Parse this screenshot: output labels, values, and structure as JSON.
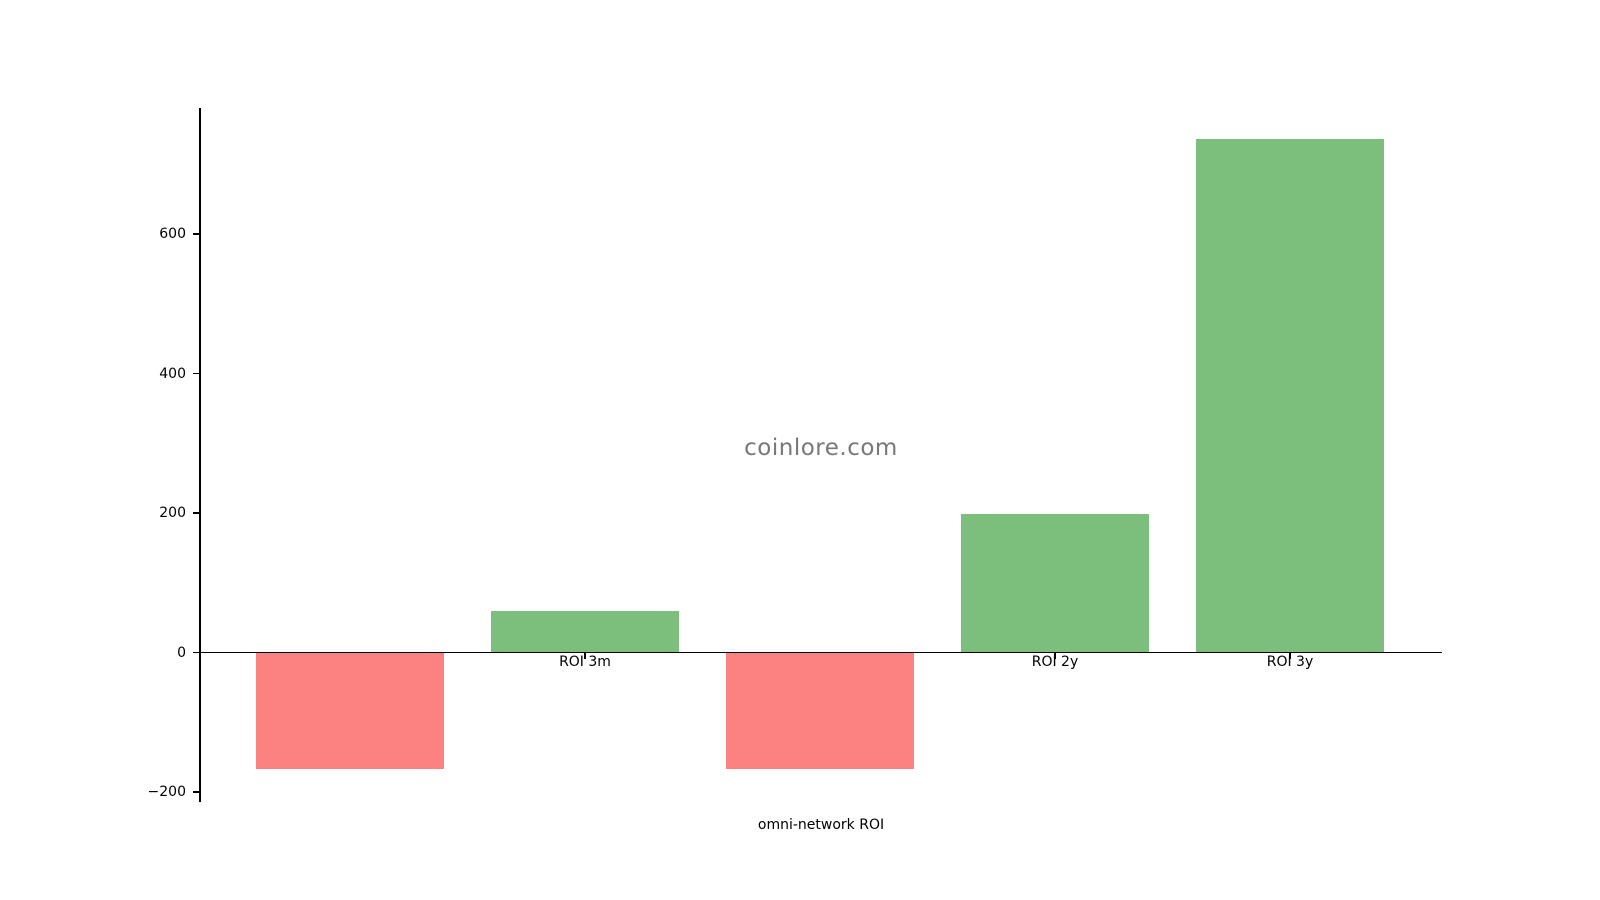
{
  "watermark": {
    "text": "coinlore.com",
    "color": "#787878"
  },
  "colors": {
    "positive_bar": "#7cbe7c",
    "negative_bar": "#fc8181",
    "axis": "#000000",
    "tick_text": "#000000"
  },
  "chart_data": {
    "type": "bar",
    "title": "omni-network ROI",
    "title_position": "bottom",
    "categories": [
      "",
      "ROI 3m",
      "",
      "ROI 2y",
      "ROI 3y"
    ],
    "values": [
      -166,
      59,
      -166,
      198,
      736
    ],
    "bar_colors": [
      "negative",
      "positive",
      "negative",
      "positive",
      "positive"
    ],
    "yticks": [
      -200,
      0,
      200,
      400,
      600
    ],
    "ylim": [
      -214,
      781
    ],
    "xlabel": "",
    "ylabel": "",
    "grid": false,
    "legend": "none",
    "watermark": "coinlore.com",
    "note_visible_pixels": "x tick labels under the two negative red bars are hidden behind the bars"
  }
}
